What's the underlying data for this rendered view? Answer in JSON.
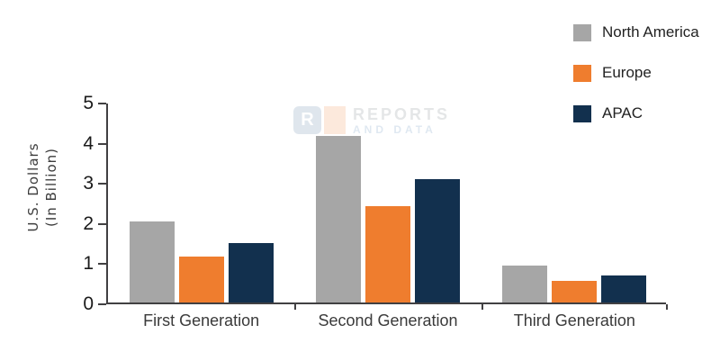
{
  "chart_data": {
    "type": "bar",
    "title": "",
    "categories": [
      "First Generation",
      "Second Generation",
      "Third Generation"
    ],
    "series": [
      {
        "name": "North America",
        "color": "#a6a6a6",
        "values": [
          2.02,
          4.15,
          0.92
        ]
      },
      {
        "name": "Europe",
        "color": "#ef7d2e",
        "values": [
          1.15,
          2.41,
          0.54
        ]
      },
      {
        "name": "APAC",
        "color": "#12304e",
        "values": [
          1.48,
          3.08,
          0.68
        ]
      }
    ],
    "xlabel": "",
    "ylabel_line1": "U.S. Dollars",
    "ylabel_line2": "(In Billion)",
    "ylim": [
      0,
      5
    ],
    "yticks": [
      0,
      1,
      2,
      3,
      4,
      5
    ],
    "grid": false,
    "legend_position": "top-right",
    "axis_color": "#414042"
  },
  "watermark": {
    "logo_letter": "R",
    "line1": "REPORTS",
    "line2": "AND DATA"
  }
}
